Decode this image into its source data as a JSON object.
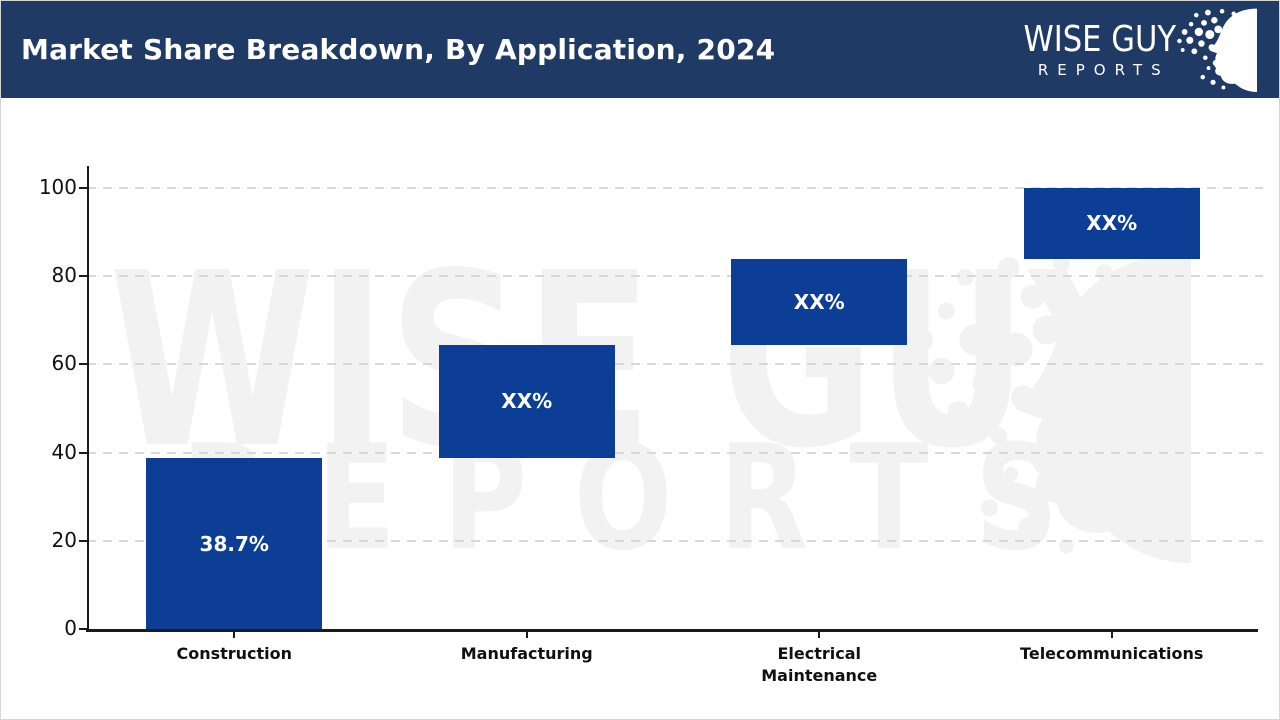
{
  "header": {
    "title": "Market Share Breakdown, By Application, 2024",
    "logo": {
      "line1": "WISE GUY",
      "line2": "REPORTS"
    }
  },
  "watermark": {
    "line1": "WISE GUY",
    "line2": "REPORTS"
  },
  "colors": {
    "header_bg": "#203a66",
    "bar_blue": "#0b3e94",
    "gridline": "#d8d8d8",
    "axis": "#1a1a1a",
    "watermark": "#f2f2f2",
    "bar_label": "#ffffff"
  },
  "chart_data": {
    "type": "bar",
    "subtype": "floating-segment-waterfall",
    "title": "Market Share Breakdown, By Application, 2024",
    "categories": [
      "Construction",
      "Manufacturing",
      "Electrical Maintenance",
      "Telecommunications"
    ],
    "values": [
      38.7,
      25.8,
      19.5,
      16.0
    ],
    "bars": [
      {
        "category": "Construction",
        "category_lines": [
          "Construction"
        ],
        "label": "38.7%",
        "from": 0,
        "to": 38.7
      },
      {
        "category": "Manufacturing",
        "category_lines": [
          "Manufacturing"
        ],
        "label": "XX%",
        "from": 38.7,
        "to": 64.5
      },
      {
        "category": "Electrical Maintenance",
        "category_lines": [
          "Electrical",
          "Maintenance"
        ],
        "label": "XX%",
        "from": 64.5,
        "to": 84
      },
      {
        "category": "Telecommunications",
        "category_lines": [
          "Telecommunications"
        ],
        "label": "XX%",
        "from": 84,
        "to": 100
      }
    ],
    "ylim": [
      0,
      100
    ],
    "yticks": [
      0,
      20,
      40,
      60,
      80,
      100
    ],
    "grid": "horizontal-dashed",
    "legend": "none",
    "xlabel": "",
    "ylabel": ""
  }
}
